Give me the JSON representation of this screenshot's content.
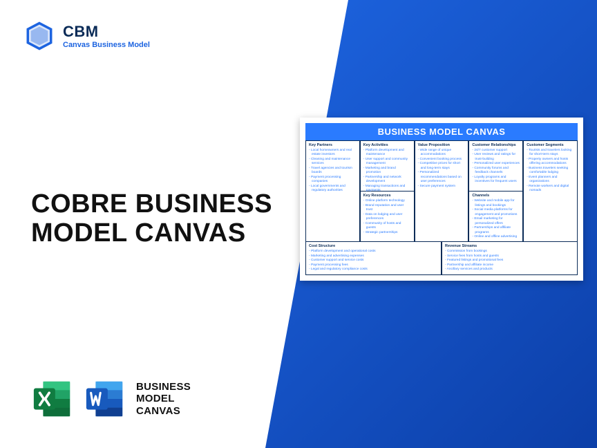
{
  "brand": {
    "abbr": "CBM",
    "sub": "Canvas Business Model",
    "logo_color": "#1d64e0"
  },
  "title_line1": "COBRE BUSINESS",
  "title_line2": "MODEL CANVAS",
  "footer": {
    "line1": "BUSINESS",
    "line2": "MODEL",
    "line3": "CANVAS",
    "excel_color1": "#107c41",
    "excel_color2": "#21a366",
    "word_color1": "#185abd",
    "word_color2": "#2b7cd3"
  },
  "canvas": {
    "title": "BUSINESS MODEL CANVAS",
    "title_bg": "#2a7bff",
    "border_color": "#0a2b57",
    "item_color": "#2a7bff",
    "cells": {
      "key_partners": {
        "heading": "Key Partners",
        "items": [
          "Local homeowners and real estate investors",
          "Cleaning and maintenance services",
          "Travel agencies and tourism boards",
          "Payment processing companies",
          "Local governments and regulatory authorities"
        ]
      },
      "key_activities": {
        "heading": "Key Activities",
        "items": [
          "Platform development and maintenance",
          "User support and community management",
          "Marketing and brand promotion",
          "Partnership and network development",
          "Managing transactions and payments"
        ]
      },
      "key_resources": {
        "heading": "Key Resources",
        "items": [
          "Online platform technology",
          "Brand reputation and user trust",
          "Data on lodging and user preferences",
          "Community of hosts and guests",
          "Strategic partnerships"
        ]
      },
      "value_proposition": {
        "heading": "Value Proposition",
        "items": [
          "Wide range of unique accommodations",
          "Convenient booking process",
          "Competitive prices for short and long-term stays",
          "Personalized recommendations based on user preferences",
          "Secure payment system"
        ]
      },
      "customer_relationships": {
        "heading": "Customer Relationships",
        "items": [
          "24/7 customer support",
          "User reviews and ratings for trust-building",
          "Personalized user experiences",
          "Community forums and feedback channels",
          "Loyalty programs and incentives for frequent users"
        ]
      },
      "channels": {
        "heading": "Channels",
        "items": [
          "Website and mobile app for listings and bookings",
          "Social media platforms for engagement and promotions",
          "Email marketing for personalized offers",
          "Partnerships and affiliate programs",
          "Online and offline advertising"
        ]
      },
      "customer_segments": {
        "heading": "Customer Segments",
        "items": [
          "Tourists and travelers looking for short-term stays",
          "Property owners and hosts offering accommodations",
          "Business travelers seeking comfortable lodging",
          "Event planners and organizations",
          "Remote workers and digital nomads"
        ]
      },
      "cost_structure": {
        "heading": "Cost Structure",
        "items": [
          "Platform development and operational costs",
          "Marketing and advertising expenses",
          "Customer support and service costs",
          "Payment processing fees",
          "Legal and regulatory compliance costs"
        ]
      },
      "revenue_streams": {
        "heading": "Revenue Streams",
        "items": [
          "Commission from bookings",
          "Service fees from hosts and guests",
          "Featured listings and promotional fees",
          "Partnership and affiliate income",
          "Ancillary services and products"
        ]
      }
    }
  }
}
